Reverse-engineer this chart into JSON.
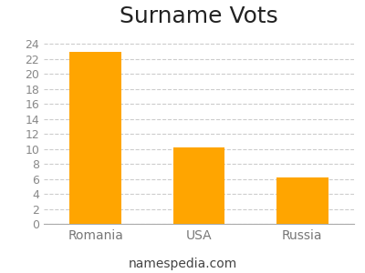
{
  "title": "Surname Vots",
  "categories": [
    "Romania",
    "USA",
    "Russia"
  ],
  "values": [
    23,
    10.2,
    6.2
  ],
  "bar_color": "#FFA500",
  "ylim": [
    0,
    25.5
  ],
  "yticks": [
    0,
    2,
    4,
    6,
    8,
    10,
    12,
    14,
    16,
    18,
    20,
    22,
    24
  ],
  "grid_color": "#cccccc",
  "background_color": "#ffffff",
  "title_fontsize": 18,
  "tick_fontsize": 9,
  "xtick_fontsize": 10,
  "footer_text": "namespedia.com",
  "footer_fontsize": 10,
  "bar_width": 0.5
}
